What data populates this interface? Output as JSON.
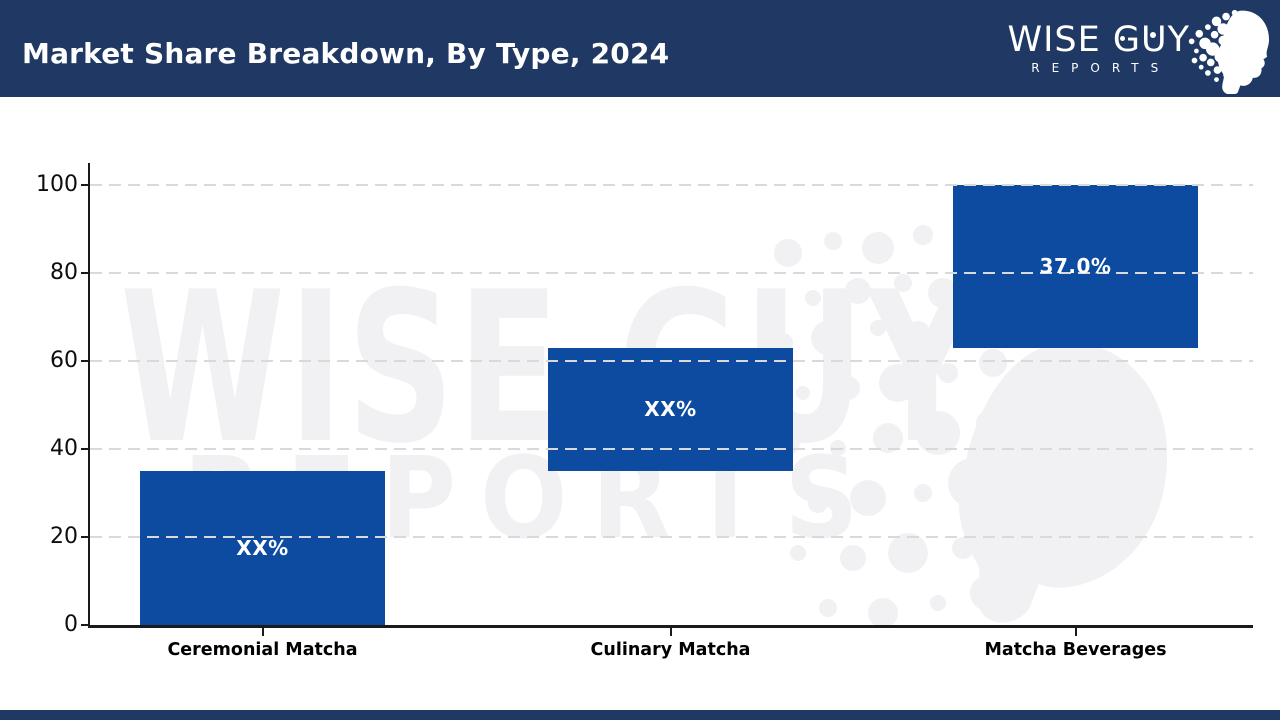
{
  "header": {
    "title": "Market Share Breakdown, By Type, 2024",
    "logo": {
      "wordmark": "WISE GUY",
      "subtitle": "REPORTS"
    }
  },
  "watermark": {
    "line1": "WISE GUY",
    "line2": "REPORTS"
  },
  "chart_data": {
    "type": "bar",
    "subtype": "waterfall",
    "title": "Market Share Breakdown, By Type, 2024",
    "categories": [
      "Ceremonial Matcha",
      "Culinary Matcha",
      "Matcha Beverages"
    ],
    "segments": [
      {
        "category": "Ceremonial Matcha",
        "start": 0,
        "end": 35,
        "value": 35,
        "label": "XX%"
      },
      {
        "category": "Culinary Matcha",
        "start": 35,
        "end": 63,
        "value": 28,
        "label": "XX%"
      },
      {
        "category": "Matcha Beverages",
        "start": 63,
        "end": 100,
        "value": 37,
        "label": "37.0%"
      }
    ],
    "xlabel": "",
    "ylabel": "",
    "ylim": [
      0,
      105
    ],
    "yticks": [
      0,
      20,
      40,
      60,
      80,
      100
    ],
    "grid": "horizontal-dashed",
    "legend": "none",
    "bar_color": "#0c4ba0",
    "value_label_color": "#ffffff"
  },
  "colors": {
    "header_bg": "#1f3864",
    "footer_bg": "#1f3864",
    "axis": "#1a1a1a",
    "grid": "#d9d9d9",
    "watermark": "#f1f1f4"
  }
}
